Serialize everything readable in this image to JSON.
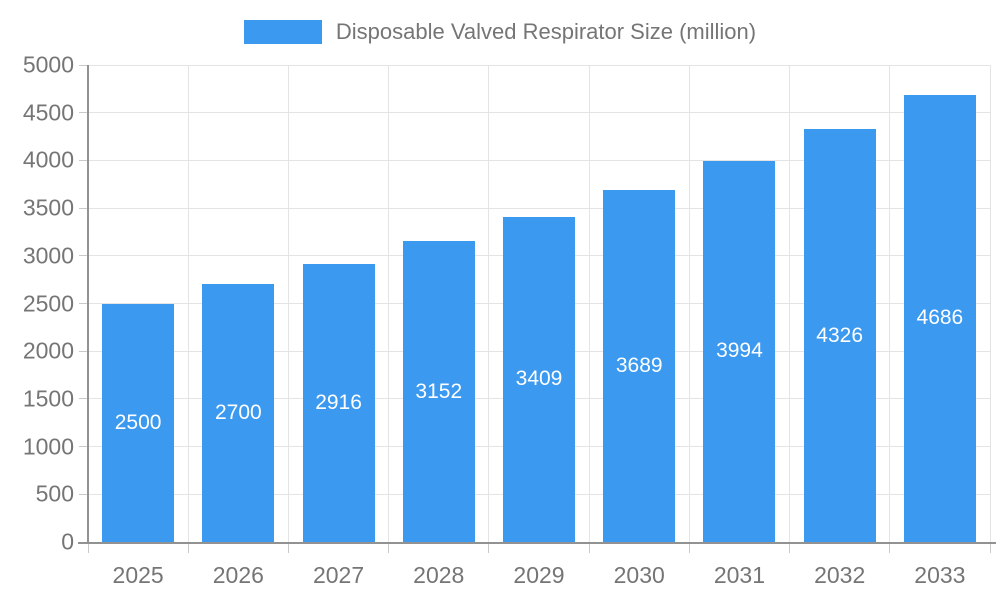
{
  "chart_data": {
    "type": "bar",
    "title": "Disposable Valved Respirator Size (million)",
    "categories": [
      "2025",
      "2026",
      "2027",
      "2028",
      "2029",
      "2030",
      "2031",
      "2032",
      "2033"
    ],
    "values": [
      2500,
      2700,
      2916,
      3152,
      3409,
      3689,
      3994,
      4326,
      4686
    ],
    "xlabel": "",
    "ylabel": "",
    "ylim": [
      0,
      5000
    ],
    "ytick_step": 500,
    "yticks": [
      0,
      500,
      1000,
      1500,
      2000,
      2500,
      3000,
      3500,
      4000,
      4500,
      5000
    ],
    "grid": true,
    "legend_position": "top-center",
    "bar_labels_visible": true,
    "colors": {
      "bar": "#3b99f0",
      "bar_label_text": "#ffffff",
      "axis_text": "#757575",
      "legend_text": "#757575",
      "gridline": "#e4e4e4",
      "axis_line": "#929292",
      "tick_mark": "#c9c9c9",
      "background": "#ffffff"
    }
  }
}
